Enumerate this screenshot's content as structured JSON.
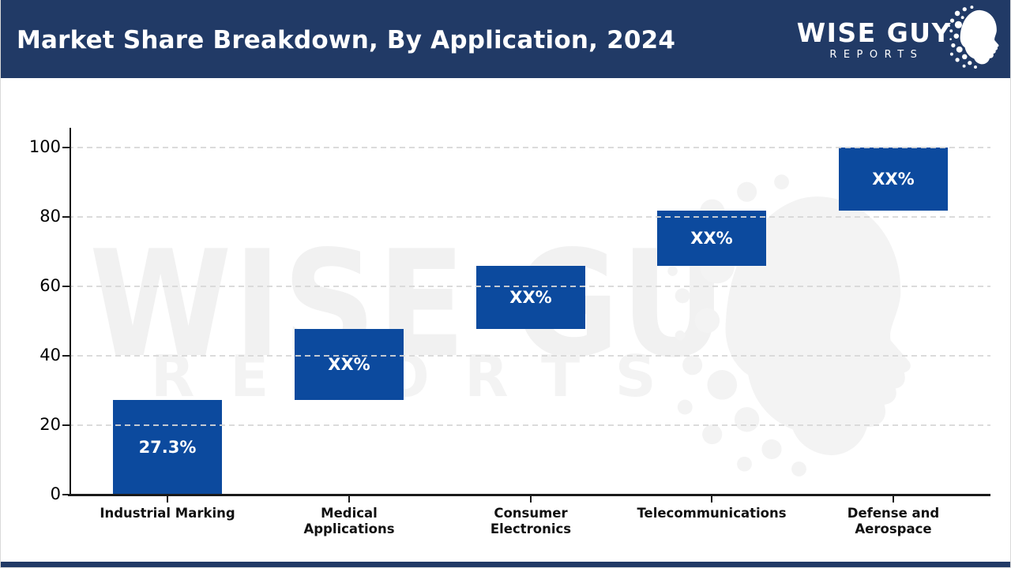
{
  "header": {
    "title": "Market Share Breakdown, By Application, 2024",
    "bg_color": "#213a66",
    "logo": {
      "line1": "WISE GUY",
      "line2": "REPORTS"
    }
  },
  "watermark": {
    "line1": "WISE GUY",
    "line2": "REPORTS"
  },
  "chart_data": {
    "type": "bar",
    "subtype": "waterfall",
    "title": "Market Share Breakdown, By Application, 2024",
    "categories": [
      "Industrial Marking",
      "Medical Applications",
      "Consumer Electronics",
      "Telecommunications",
      "Defense and Aerospace"
    ],
    "categories_lines": [
      [
        "Industrial Marking"
      ],
      [
        "Medical",
        "Applications"
      ],
      [
        "Consumer",
        "Electronics"
      ],
      [
        "Telecommunications"
      ],
      [
        "Defense and",
        "Aerospace"
      ]
    ],
    "segments": [
      {
        "category": "Industrial Marking",
        "start": 0,
        "end": 27.3,
        "label": "27.3%"
      },
      {
        "category": "Medical Applications",
        "start": 27.3,
        "end": 47.7,
        "label": "XX%"
      },
      {
        "category": "Consumer Electronics",
        "start": 47.7,
        "end": 66.0,
        "label": "XX%"
      },
      {
        "category": "Telecommunications",
        "start": 66.0,
        "end": 81.8,
        "label": "XX%"
      },
      {
        "category": "Defense and Aerospace",
        "start": 81.8,
        "end": 100,
        "label": "XX%"
      }
    ],
    "y_ticks": [
      0,
      20,
      40,
      60,
      80,
      100
    ],
    "ylim": [
      0,
      100
    ],
    "xlabel": "",
    "ylabel": "",
    "grid": "horizontal dashed",
    "legend": "none",
    "bar_color": "#0c4a9e",
    "bar_label_color": "#ffffff"
  }
}
